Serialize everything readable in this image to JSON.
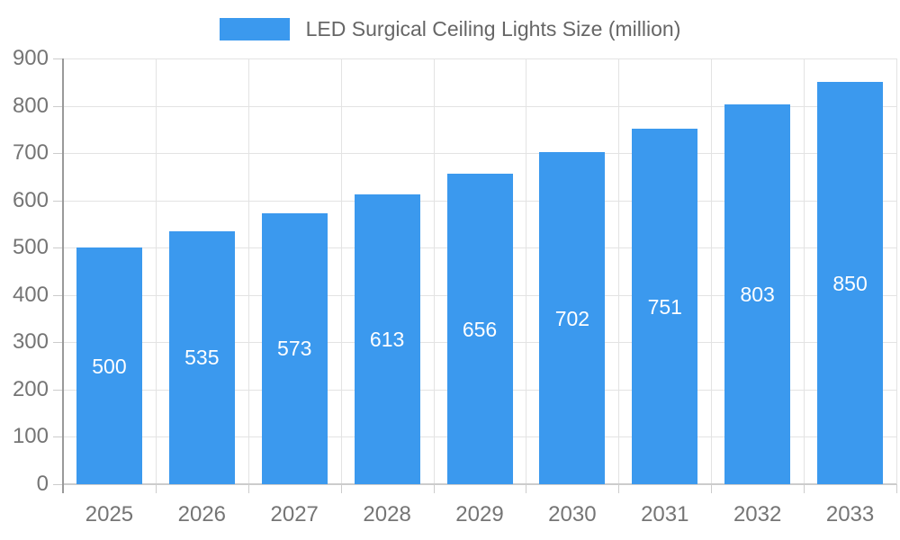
{
  "legend": {
    "label": "LED Surgical Ceiling Lights Size (million)"
  },
  "chart_data": {
    "type": "bar",
    "title": "LED Surgical Ceiling Lights Size (million)",
    "categories": [
      "2025",
      "2026",
      "2027",
      "2028",
      "2029",
      "2030",
      "2031",
      "2032",
      "2033"
    ],
    "values": [
      500,
      535,
      573,
      613,
      656,
      702,
      751,
      803,
      850
    ],
    "series_name": "LED Surgical Ceiling Lights Size (million)",
    "xlabel": "",
    "ylabel": "",
    "ylim": [
      0,
      900
    ],
    "yticks": [
      0,
      100,
      200,
      300,
      400,
      500,
      600,
      700,
      800,
      900
    ],
    "grid": true,
    "legend_position": "top",
    "bar_labels_visible": true,
    "bar_label_position": "inside-center"
  },
  "colors": {
    "bar": "#3B99EE",
    "bar_label": "#FFFFFF",
    "axis_label": "#757575",
    "legend_text": "#666666",
    "gridline": "#E3E3E3",
    "axis_line": "#999999",
    "tick": "#CCCCCC",
    "background": "#FFFFFF"
  }
}
